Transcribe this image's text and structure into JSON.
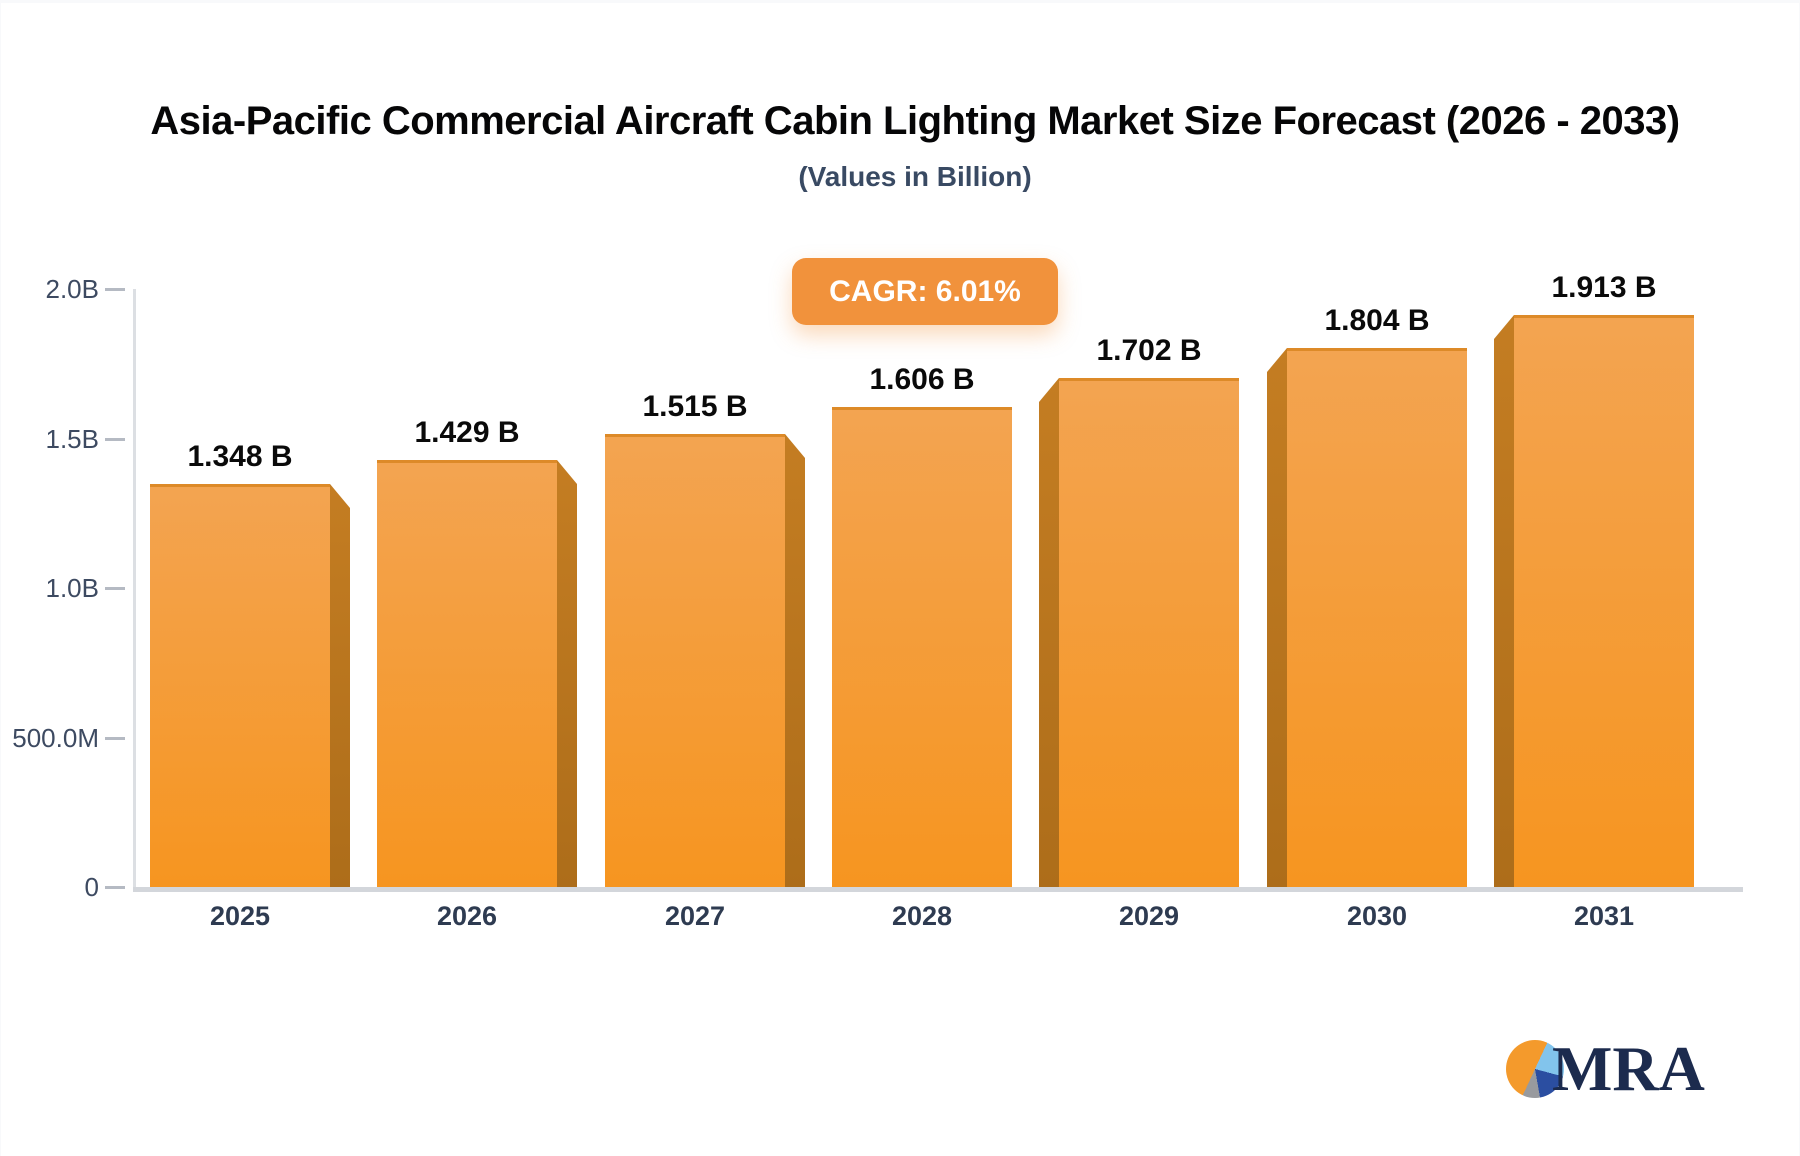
{
  "header": {
    "title": "Asia-Pacific Commercial Aircraft Cabin Lighting Market Size Forecast (2026 - 2033)",
    "subtitle": "(Values in Billion)"
  },
  "badge": {
    "label": "CAGR: 6.01%"
  },
  "chart_data": {
    "type": "bar",
    "title": "Asia-Pacific Commercial Aircraft Cabin Lighting Market Size Forecast (2026 - 2033)",
    "subtitle": "(Values in Billion)",
    "cagr": "6.01%",
    "categories": [
      "2025",
      "2026",
      "2027",
      "2028",
      "2029",
      "2030",
      "2031"
    ],
    "values": [
      1.348,
      1.429,
      1.515,
      1.606,
      1.702,
      1.804,
      1.913
    ],
    "value_labels": [
      "1.348 B",
      "1.429 B",
      "1.515 B",
      "1.606 B",
      "1.702 B",
      "1.804 B",
      "1.913 B"
    ],
    "xlabel": "",
    "ylabel": "",
    "ylim": [
      0,
      2.0
    ],
    "y_ticks": {
      "values": [
        0,
        0.5,
        1.0,
        1.5,
        2.0
      ],
      "labels": [
        "0",
        "500.0M",
        "1.0B",
        "1.5B",
        "2.0B"
      ]
    },
    "grid": false,
    "legend": false,
    "bar_3d_style": "center-perspective: bars left of center show dark bevel on right, bars right of center show it on left, center bar flat"
  },
  "colors": {
    "bar_face_top": "#f3a451",
    "bar_face_bottom": "#f69520",
    "bar_edge": "#dd8a28",
    "bevel_top": "#c47d22",
    "bevel_bottom": "#ad6d1a",
    "badge_bg": "#f1923c",
    "axis": "#d3d6db",
    "tick_text": "#3d4a61",
    "year_text": "#2e3b51",
    "title_text": "#060607",
    "subtitle_text": "#394a63",
    "logo_navy": "#1c2b4e",
    "logo_pie_orange": "#f49a2c",
    "logo_pie_lightblue": "#82c4ec",
    "logo_pie_royalblue": "#2b4ea1",
    "logo_pie_gray": "#989a9e"
  },
  "logo": {
    "text": "MRA",
    "icon": "pie-chart-logo-icon"
  }
}
